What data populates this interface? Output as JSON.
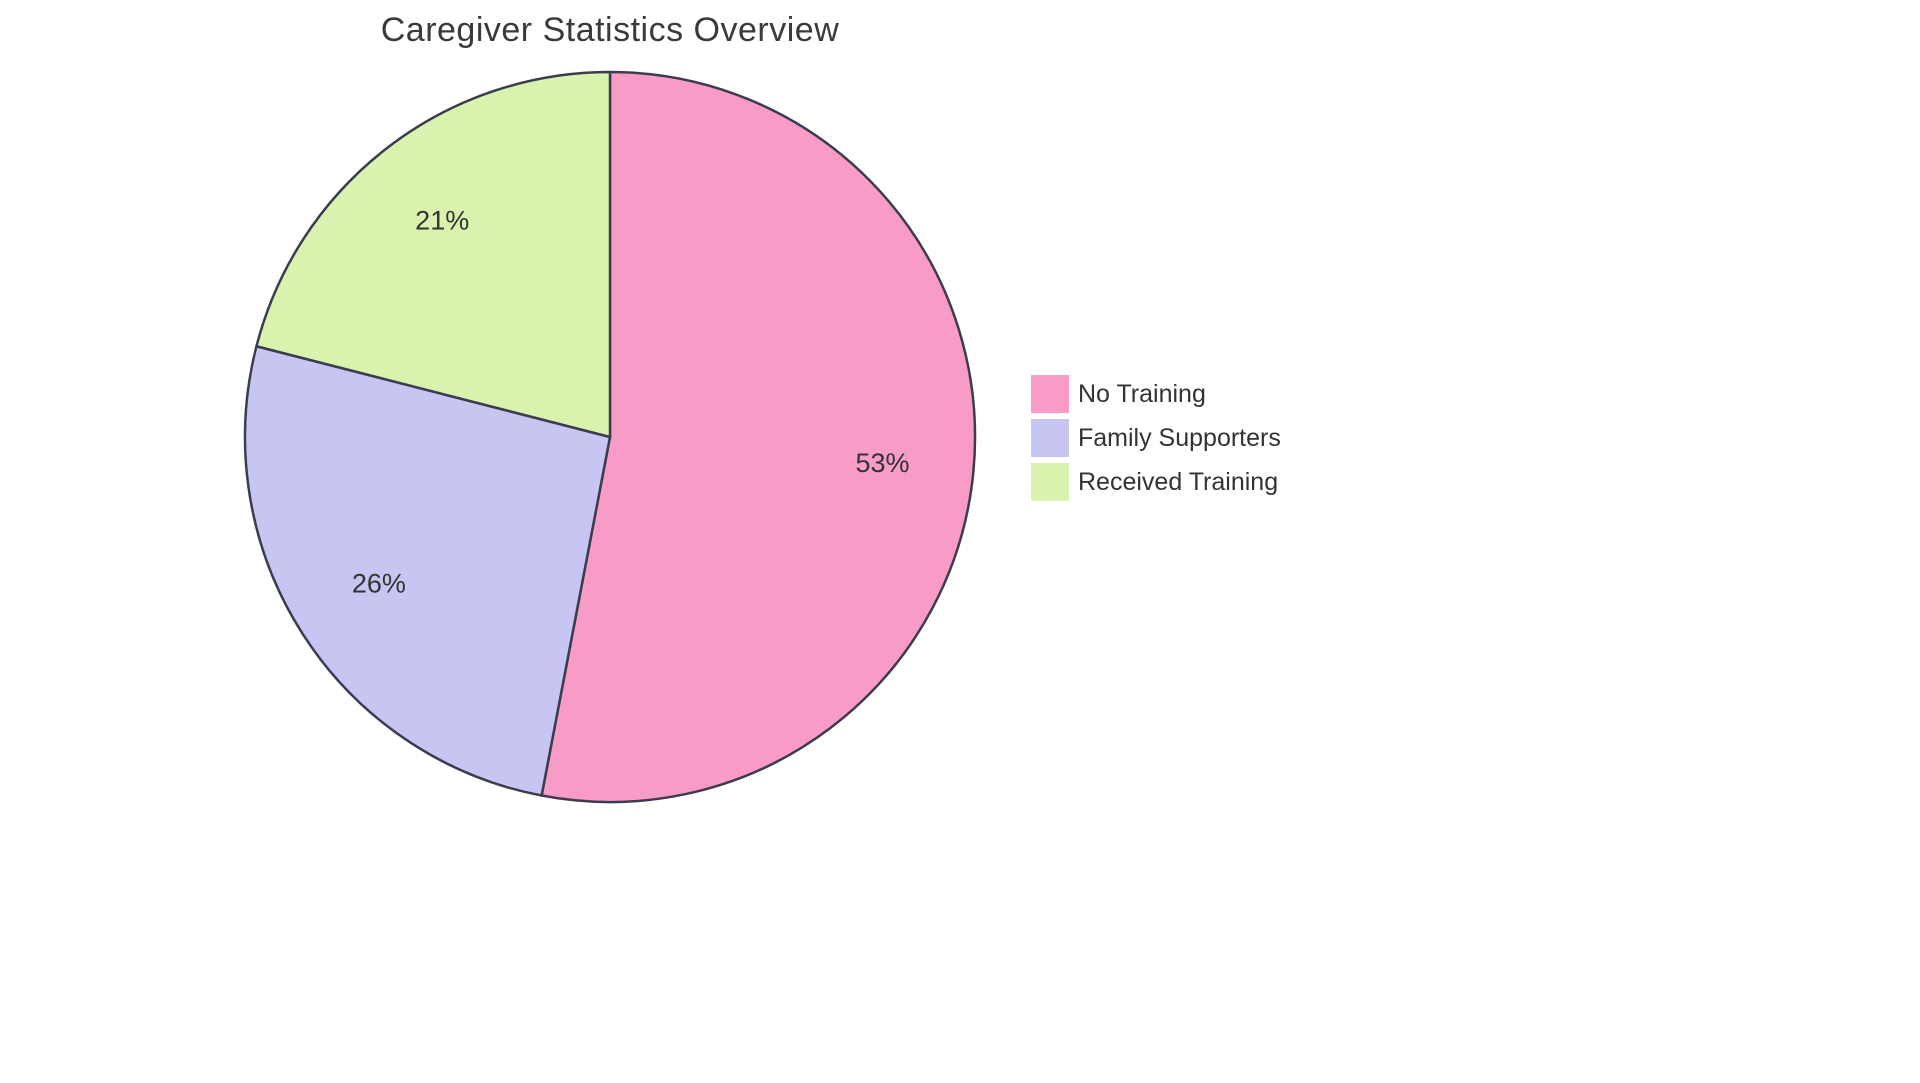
{
  "chart_data": {
    "type": "pie",
    "title": "Caregiver Statistics Overview",
    "labels": [
      "No Training",
      "Family Supporters",
      "Received Training"
    ],
    "values": [
      53,
      26,
      21
    ],
    "value_labels": [
      "53%",
      "26%",
      "21%"
    ],
    "colors": [
      "#F89BC7",
      "#C7C6F2",
      "#D9F3AE"
    ],
    "slice_border_color": "#3C3C50",
    "slice_border_width": 2.5,
    "label_text_color": "#333333",
    "title_color": "#3A3A3A",
    "legend_position": "right",
    "start_angle": "top",
    "direction": "clockwise",
    "grid": false
  }
}
